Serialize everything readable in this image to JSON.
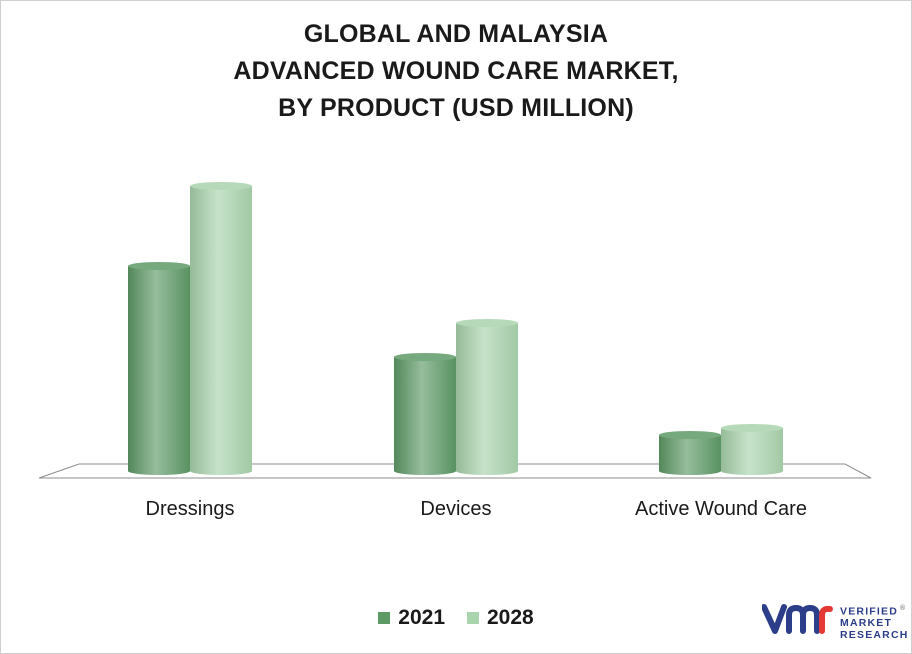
{
  "chart_data": {
    "type": "bar",
    "title_lines": [
      "GLOBAL AND MALAYSIA",
      "ADVANCED WOUND CARE MARKET,",
      "BY PRODUCT (USD MILLION)"
    ],
    "categories": [
      "Dressings",
      "Devices",
      "Active Wound Care"
    ],
    "series": [
      {
        "name": "2021",
        "values": [
          205,
          114,
          36
        ],
        "color": "#5e9a66"
      },
      {
        "name": "2028",
        "values": [
          285,
          148,
          43
        ],
        "color": "#a9d4ad"
      }
    ],
    "ylim": [
      0,
      300
    ],
    "grid": false,
    "legend_position": "bottom-center"
  },
  "logo": {
    "lines": [
      "VERIFIED",
      "MARKET",
      "RESEARCH"
    ],
    "mark": "®",
    "color": "#2c3e8a"
  }
}
